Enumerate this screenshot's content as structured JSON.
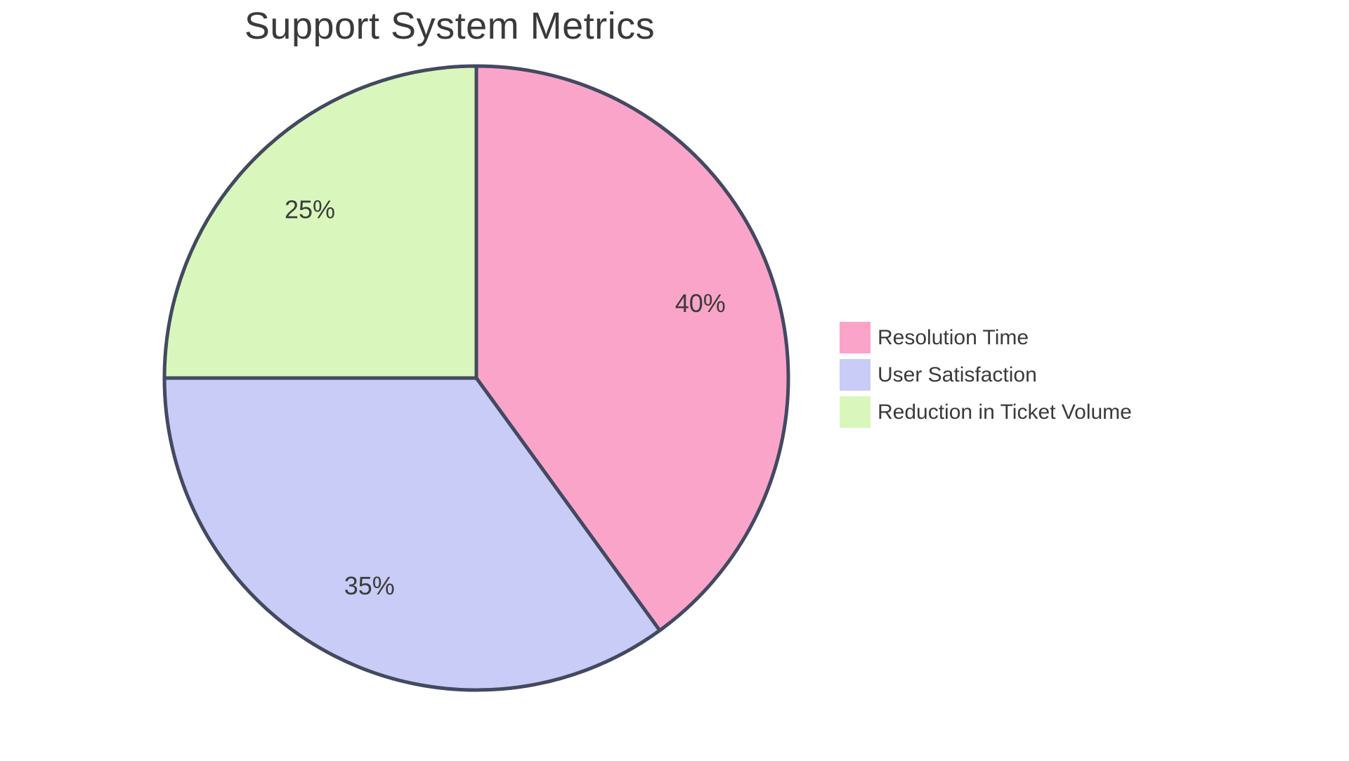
{
  "page": {
    "background_color": "#ffffff"
  },
  "chart_data": {
    "type": "pie",
    "title": "Support System Metrics",
    "title_color": "#3a3a3a",
    "categories": [
      "Resolution Time",
      "User Satisfaction",
      "Reduction in Ticket Volume"
    ],
    "values": [
      40,
      35,
      25
    ],
    "slices": [
      {
        "label": "Resolution Time",
        "value": 40,
        "percent_label": "40%",
        "color": "#faa4c9"
      },
      {
        "label": "User Satisfaction",
        "value": 35,
        "percent_label": "35%",
        "color": "#c8ccf6"
      },
      {
        "label": "Reduction in Ticket Volume",
        "value": 25,
        "percent_label": "25%",
        "color": "#d9f7bd"
      }
    ],
    "start_angle_deg": 0,
    "direction": "clockwise",
    "stroke_color": "#434960",
    "stroke_width": 5,
    "slice_label_color": "#3c3c3c",
    "legend_position": "right",
    "grid": false
  }
}
